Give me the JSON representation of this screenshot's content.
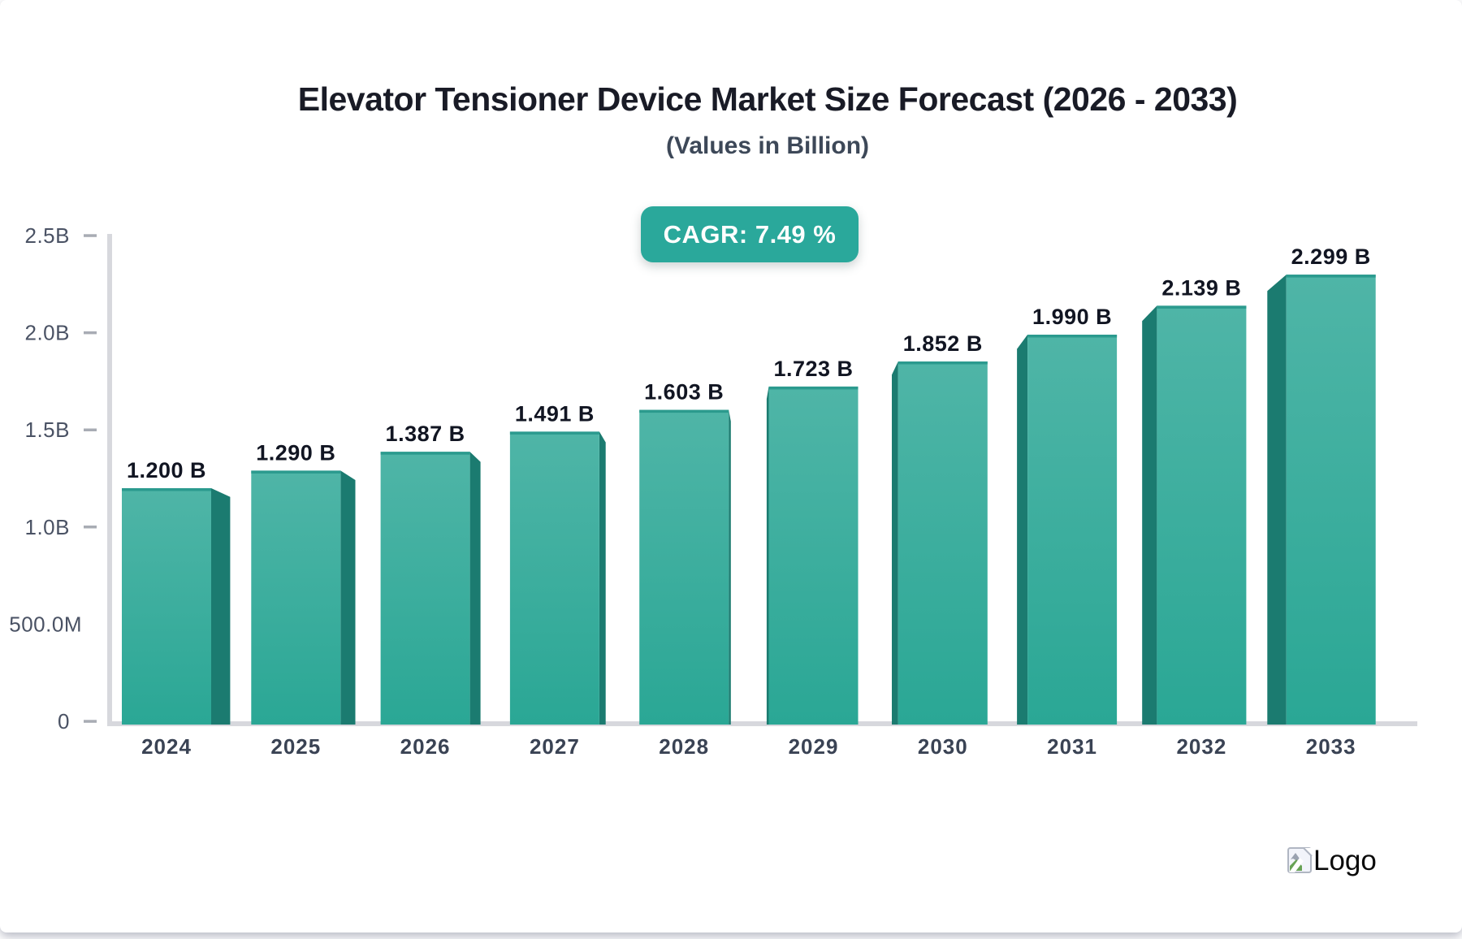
{
  "colors": {
    "title_color": "#191B26",
    "subtitle_color": "#3D4858",
    "badge_bg": "#2AA89B",
    "badge_text": "#FFFFFF",
    "bar_top": "#4FB5A7",
    "bar_bottom": "#2AA795",
    "bar_side": "#1B7B70",
    "bar_top_edge": "#2B9A8E",
    "axis_line": "#D7D8DD",
    "tick_dash": "#A8ACB4",
    "y_label": "#4A5264",
    "x_label": "#3A4354",
    "value_label": "#111522",
    "logo_text": "#0B0B0B"
  },
  "footer": {
    "logo_alt": "Logo"
  },
  "chart_data": {
    "type": "bar",
    "bar_style": "3d-perspective",
    "title": "Elevator Tensioner Device Market Size Forecast (2026 - 2033)",
    "subtitle": "(Values in Billion)",
    "cagr_badge": "CAGR: 7.49 %",
    "categories": [
      "2024",
      "2025",
      "2026",
      "2027",
      "2028",
      "2029",
      "2030",
      "2031",
      "2032",
      "2033"
    ],
    "values_billion": [
      1.2,
      1.29,
      1.387,
      1.491,
      1.603,
      1.723,
      1.852,
      1.99,
      2.139,
      2.299
    ],
    "value_labels": [
      "1.200 B",
      "1.290 B",
      "1.387 B",
      "1.491 B",
      "1.603 B",
      "1.723 B",
      "1.852 B",
      "1.990 B",
      "2.139 B",
      "2.299 B"
    ],
    "y_axis": {
      "range_billion": [
        0,
        2.5
      ],
      "ticks": [
        {
          "label": "2.5B",
          "value": 2.5,
          "dash": true
        },
        {
          "label": "2.0B",
          "value": 2.0,
          "dash": true
        },
        {
          "label": "1.5B",
          "value": 1.5,
          "dash": true
        },
        {
          "label": "1.0B",
          "value": 1.0,
          "dash": true
        },
        {
          "label": "500.0M",
          "value": 0.5,
          "dash": false
        },
        {
          "label": "0",
          "value": 0.0,
          "dash": true
        }
      ]
    },
    "grid": false,
    "legend": "none"
  }
}
